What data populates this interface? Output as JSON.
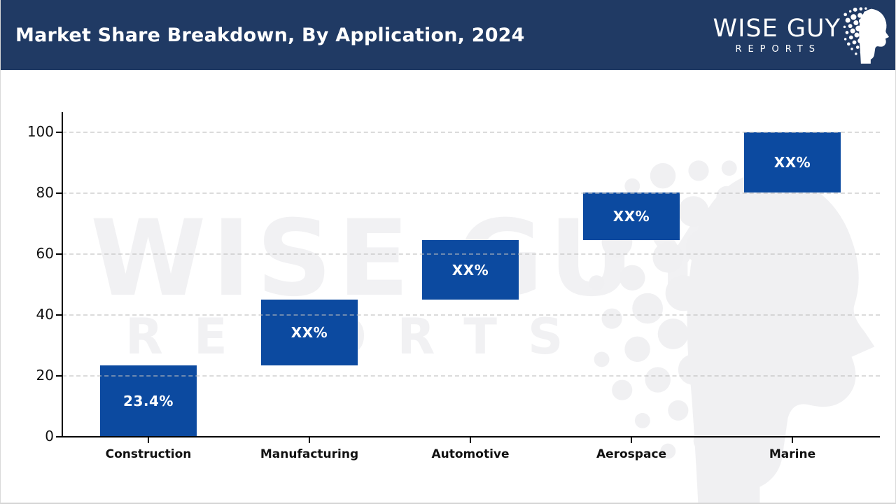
{
  "header": {
    "title": "Market Share Breakdown, By Application, 2024",
    "logo": {
      "line1": "WISE GUY",
      "line2": "REPORTS"
    }
  },
  "watermark": {
    "line1": "WISE GUY",
    "line2": "REPORTS"
  },
  "chart_data": {
    "type": "bar",
    "subtype": "waterfall-floating-bars",
    "title": "Market Share Breakdown, By Application, 2024",
    "categories": [
      "Construction",
      "Manufacturing",
      "Automotive",
      "Aerospace",
      "Marine"
    ],
    "segments": [
      {
        "category": "Construction",
        "start": 0,
        "end": 23.4,
        "label": "23.4%"
      },
      {
        "category": "Manufacturing",
        "start": 23.4,
        "end": 45.0,
        "label": "XX%"
      },
      {
        "category": "Automotive",
        "start": 45.0,
        "end": 64.5,
        "label": "XX%"
      },
      {
        "category": "Aerospace",
        "start": 64.5,
        "end": 80.3,
        "label": "XX%"
      },
      {
        "category": "Marine",
        "start": 80.3,
        "end": 100.0,
        "label": "XX%"
      }
    ],
    "yticks": [
      0,
      20,
      40,
      60,
      80,
      100
    ],
    "ylim": [
      0,
      106
    ],
    "xlabel": "",
    "ylabel": "",
    "grid": "dashed-horizontal",
    "legend": "none"
  },
  "colors": {
    "header_bg": "#203A64",
    "bar": "#0C4AA0",
    "grid": "#D9D9D9",
    "watermark": "#F1F1F3",
    "axis_text": "#111111",
    "bar_label_text": "#FFFFFF"
  }
}
